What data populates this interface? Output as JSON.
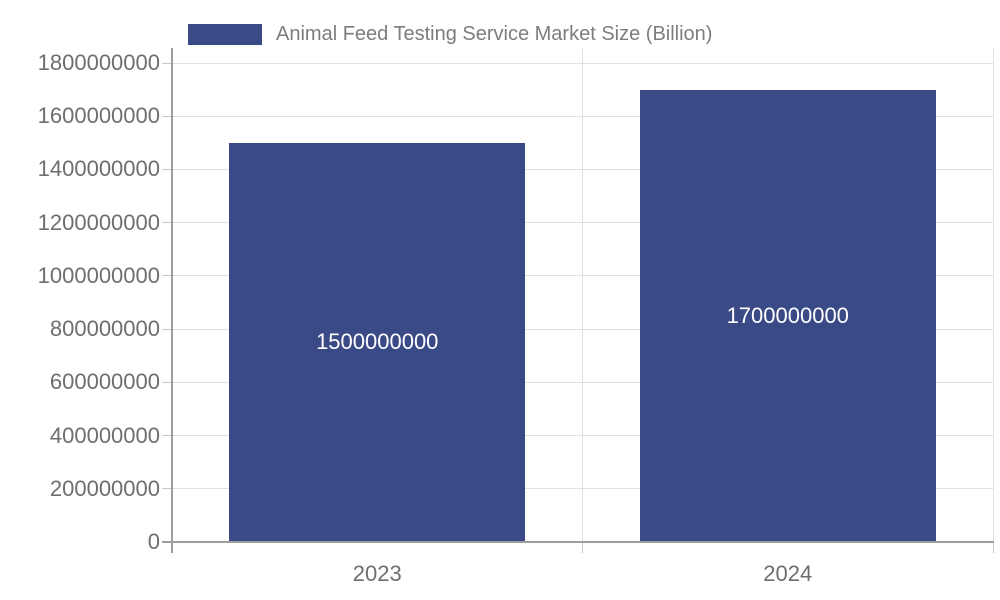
{
  "chart_data": {
    "type": "bar",
    "title": "Animal Feed Testing Service Market Size (Billion)",
    "series_name": "Animal Feed Testing Service Market Size (Billion)",
    "categories": [
      "2023",
      "2024"
    ],
    "values": [
      1500000000,
      1700000000
    ],
    "bar_value_labels": [
      "1500000000",
      "1700000000"
    ],
    "xlabel": "",
    "ylabel": "",
    "ylim": [
      0,
      1800000000
    ],
    "ytick_step": 200000000,
    "ytick_labels": [
      "0",
      "200000000",
      "400000000",
      "600000000",
      "800000000",
      "1000000000",
      "1200000000",
      "1400000000",
      "1600000000",
      "1800000000"
    ],
    "grid": true,
    "legend_position": "top",
    "colors": {
      "bar": "#3A4A87",
      "bar_label_text": "#FFFFFF",
      "tick_label_text": "#6E6E6E",
      "title_text": "#7D7D7D",
      "gridline": "#E0E0E0",
      "axis_line": "#9E9E9E",
      "tick_mark": "#C9C9C9",
      "background": "#FFFFFF"
    }
  }
}
